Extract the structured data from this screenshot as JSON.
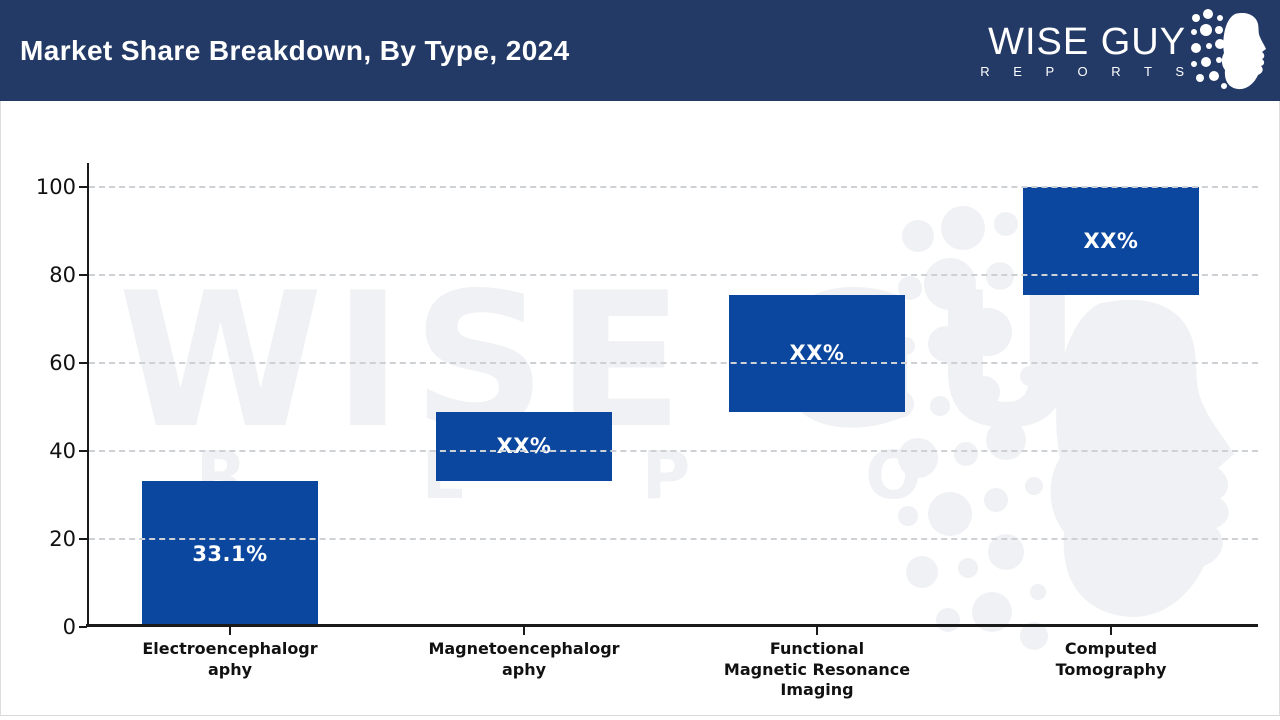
{
  "header": {
    "title": "Market Share Breakdown, By Type, 2024",
    "bg_color": "#233a66",
    "logo": {
      "name": "WISE GUY",
      "sub": "R E P O R T S"
    }
  },
  "watermark": {
    "big_text": "WISE GU",
    "sub_text": "R E P O R T S"
  },
  "chart_data": {
    "type": "bar",
    "subtype": "waterfall",
    "title": "Market Share Breakdown, By Type, 2024",
    "categories": [
      "Electroencephalogr\naphy",
      "Magnetoencephalogr\naphy",
      "Functional\nMagnetic Resonance\nImaging",
      "Computed\nTomography"
    ],
    "category_full_names": [
      "Electroencephalography",
      "Magnetoencephalography",
      "Functional Magnetic Resonance Imaging",
      "Computed Tomography"
    ],
    "segments": [
      {
        "start": 0,
        "end": 33.1,
        "label": "33.1%"
      },
      {
        "start": 33.1,
        "end": 48.8,
        "label": "XX%"
      },
      {
        "start": 48.8,
        "end": 75.3,
        "label": "XX%"
      },
      {
        "start": 75.3,
        "end": 99.8,
        "label": "XX%"
      }
    ],
    "yticks": [
      "0",
      "20",
      "40",
      "60",
      "80",
      "100"
    ],
    "ytick_values": [
      0,
      20,
      40,
      60,
      80,
      100
    ],
    "ylim": [
      0,
      100
    ],
    "xlabel": "",
    "ylabel": "",
    "grid": "horizontal-dashed",
    "legend": "none",
    "bar_color": "#0b479f",
    "bar_label_color": "#ffffff"
  }
}
